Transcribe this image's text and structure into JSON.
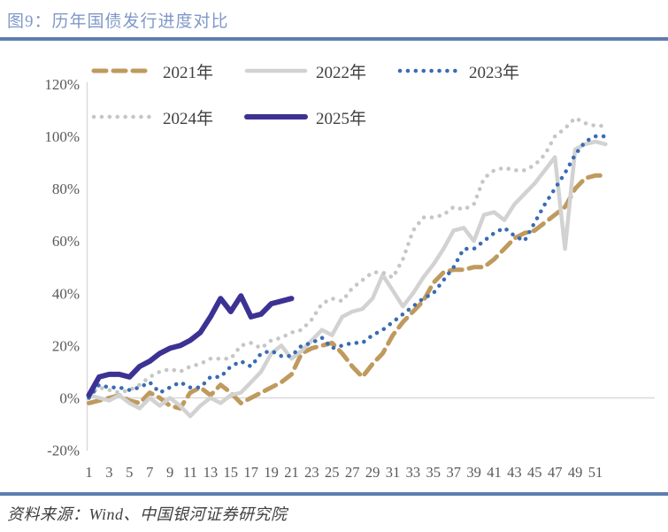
{
  "figure": {
    "title": "图9：历年国债发行进度对比",
    "source": "资料来源：Wind、中国银河证券研究院"
  },
  "colors": {
    "title_text": "#8098C8",
    "rule": "#5D7EAF",
    "axis": "#D9D9D9",
    "tick_text": "#595959",
    "source_text": "#3F3F3F"
  },
  "chart_data": {
    "type": "line",
    "title": "历年国债发行进度对比",
    "xlabel": "",
    "ylabel": "",
    "x_unit": "week-of-year",
    "x_ticks": [
      1,
      3,
      5,
      7,
      9,
      11,
      13,
      15,
      17,
      19,
      21,
      23,
      25,
      27,
      29,
      31,
      33,
      35,
      37,
      39,
      41,
      43,
      45,
      47,
      49,
      51
    ],
    "y_ticks": [
      {
        "label": "-20%",
        "value": -20
      },
      {
        "label": "0%",
        "value": 0
      },
      {
        "label": "20%",
        "value": 20
      },
      {
        "label": "40%",
        "value": 40
      },
      {
        "label": "60%",
        "value": 60
      },
      {
        "label": "80%",
        "value": 80
      },
      {
        "label": "100%",
        "value": 100
      },
      {
        "label": "120%",
        "value": 120
      }
    ],
    "ylim": [
      -20,
      120
    ],
    "xlim": [
      1,
      52
    ],
    "grid": "horizontal zero line only",
    "legend_position": "top",
    "series": [
      {
        "name": "2021年",
        "color": "#BF9A5E",
        "style": "dashed",
        "width": 5,
        "values": [
          -2,
          -1,
          0,
          1,
          -1,
          -2,
          2,
          0,
          -3,
          -4,
          2,
          4,
          1,
          5,
          2,
          -2,
          0,
          2,
          4,
          6,
          9,
          17,
          19,
          20,
          21,
          17,
          12,
          8,
          13,
          17,
          24,
          29,
          33,
          37,
          44,
          48,
          49,
          49,
          50,
          50,
          53,
          57,
          61,
          63,
          64,
          67,
          70,
          73,
          80,
          84,
          85,
          85
        ]
      },
      {
        "name": "2022年",
        "color": "#D2D2D2",
        "style": "solid",
        "width": 4.5,
        "values": [
          1,
          0,
          -1,
          1,
          -2,
          -4,
          0,
          -3,
          0,
          -3,
          -7,
          -3,
          0,
          -2,
          1,
          2,
          6,
          10,
          17,
          20,
          15,
          18,
          22,
          26,
          24,
          31,
          33,
          34,
          38,
          47,
          41,
          35,
          40,
          46,
          51,
          57,
          64,
          65,
          60,
          70,
          71,
          68,
          74,
          78,
          82,
          87,
          92,
          57,
          95,
          97,
          98,
          97
        ]
      },
      {
        "name": "2023年",
        "color": "#3A6CB3",
        "style": "dotted",
        "width": 4.5,
        "values": [
          0,
          5,
          4,
          4,
          3,
          4,
          6,
          2,
          4,
          6,
          4,
          4,
          8,
          8,
          12,
          14,
          12,
          17,
          18,
          16,
          16,
          20,
          21,
          23,
          19,
          20,
          21,
          21,
          24,
          26,
          29,
          32,
          35,
          38,
          40,
          45,
          50,
          57,
          57,
          60,
          63,
          65,
          62,
          60,
          67,
          74,
          80,
          86,
          93,
          98,
          100,
          100
        ]
      },
      {
        "name": "2024年",
        "color": "#C6C6C6",
        "style": "dotted",
        "width": 4.5,
        "values": [
          1,
          4,
          3,
          2,
          3,
          5,
          8,
          10,
          11,
          10,
          12,
          13,
          15,
          15,
          15,
          20,
          21,
          19,
          22,
          23,
          25,
          26,
          30,
          36,
          38,
          37,
          42,
          45,
          48,
          48,
          46,
          53,
          64,
          69,
          69,
          70,
          73,
          72,
          74,
          84,
          87,
          88,
          87,
          87,
          89,
          93,
          100,
          103,
          107,
          105,
          104,
          104
        ]
      },
      {
        "name": "2025年",
        "color": "#3C3294",
        "style": "solid",
        "width": 6,
        "values": [
          1,
          8,
          9,
          9,
          8,
          12,
          14,
          17,
          19,
          20,
          22,
          25,
          31,
          38,
          33,
          39,
          31,
          32,
          36,
          37,
          38
        ]
      }
    ]
  }
}
